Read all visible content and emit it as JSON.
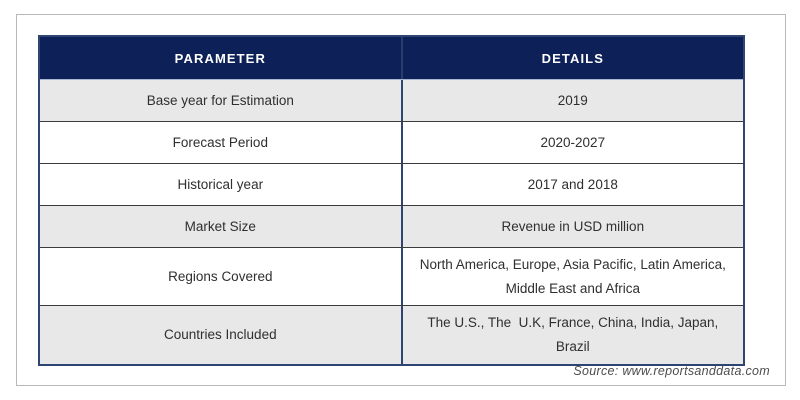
{
  "chart_data": {
    "type": "table",
    "columns": [
      "PARAMETER",
      "DETAILS"
    ],
    "rows": [
      [
        "Base year for Estimation",
        "2019"
      ],
      [
        "Forecast Period",
        "2020-2027"
      ],
      [
        "Historical year",
        "2017 and 2018"
      ],
      [
        "Market Size",
        "Revenue in USD million"
      ],
      [
        "Regions Covered",
        "North America, Europe, Asia Pacific, Latin America, Middle East and Africa"
      ],
      [
        "Countries Included",
        "The U.S., The  U.K, France, China, India, Japan, Brazil"
      ]
    ],
    "shaded_row_indices": [
      0,
      3,
      5
    ],
    "legend_position": "none",
    "grid": true
  },
  "source": {
    "text": "Source: www.reportsanddata.com"
  },
  "colors": {
    "header_bg": "#0d2158",
    "header_text": "#ffffff",
    "table_border": "#2e4472",
    "row_divider": "#3b3b3b",
    "shaded_row_bg": "#e8e8e8",
    "cell_text": "#2f2f2f",
    "source_text": "#4d4d4d",
    "frame_border": "#b9b9b9"
  }
}
